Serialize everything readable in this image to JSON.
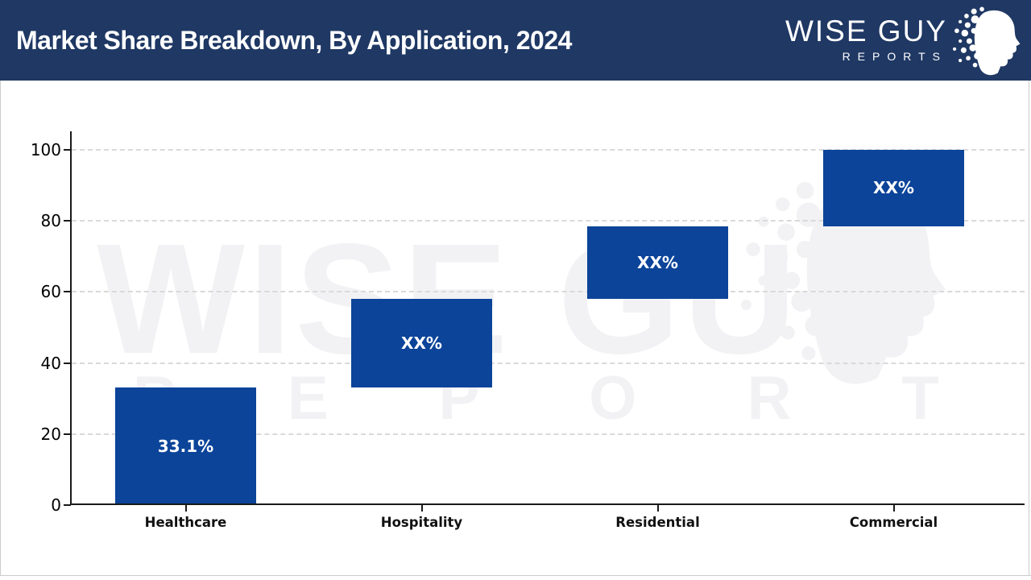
{
  "header": {
    "title": "Market Share Breakdown, By Application, 2024",
    "logo": {
      "line1": "WISE GUY",
      "line2": "REPORTS"
    }
  },
  "watermark": {
    "line1": "WISE GUY",
    "line2": "R E P O R T S"
  },
  "chart_data": {
    "type": "bar",
    "subtype": "waterfall",
    "title": "Market Share Breakdown, By Application, 2024",
    "categories": [
      "Healthcare",
      "Hospitality",
      "Residential",
      "Commercial"
    ],
    "segments": [
      {
        "category": "Healthcare",
        "start": 0,
        "end": 33.1,
        "label": "33.1%"
      },
      {
        "category": "Hospitality",
        "start": 33.1,
        "end": 58.0,
        "label": "XX%"
      },
      {
        "category": "Residential",
        "start": 58.0,
        "end": 78.5,
        "label": "XX%"
      },
      {
        "category": "Commercial",
        "start": 78.5,
        "end": 100,
        "label": "XX%"
      }
    ],
    "ylim": [
      0,
      100
    ],
    "yticks": [
      0,
      20,
      40,
      60,
      80,
      100
    ],
    "grid": "horizontal-dashed",
    "legend": "none",
    "bar_color": "#0b4499",
    "bar_label_color": "#ffffff",
    "header_bg": "#1f3864"
  }
}
